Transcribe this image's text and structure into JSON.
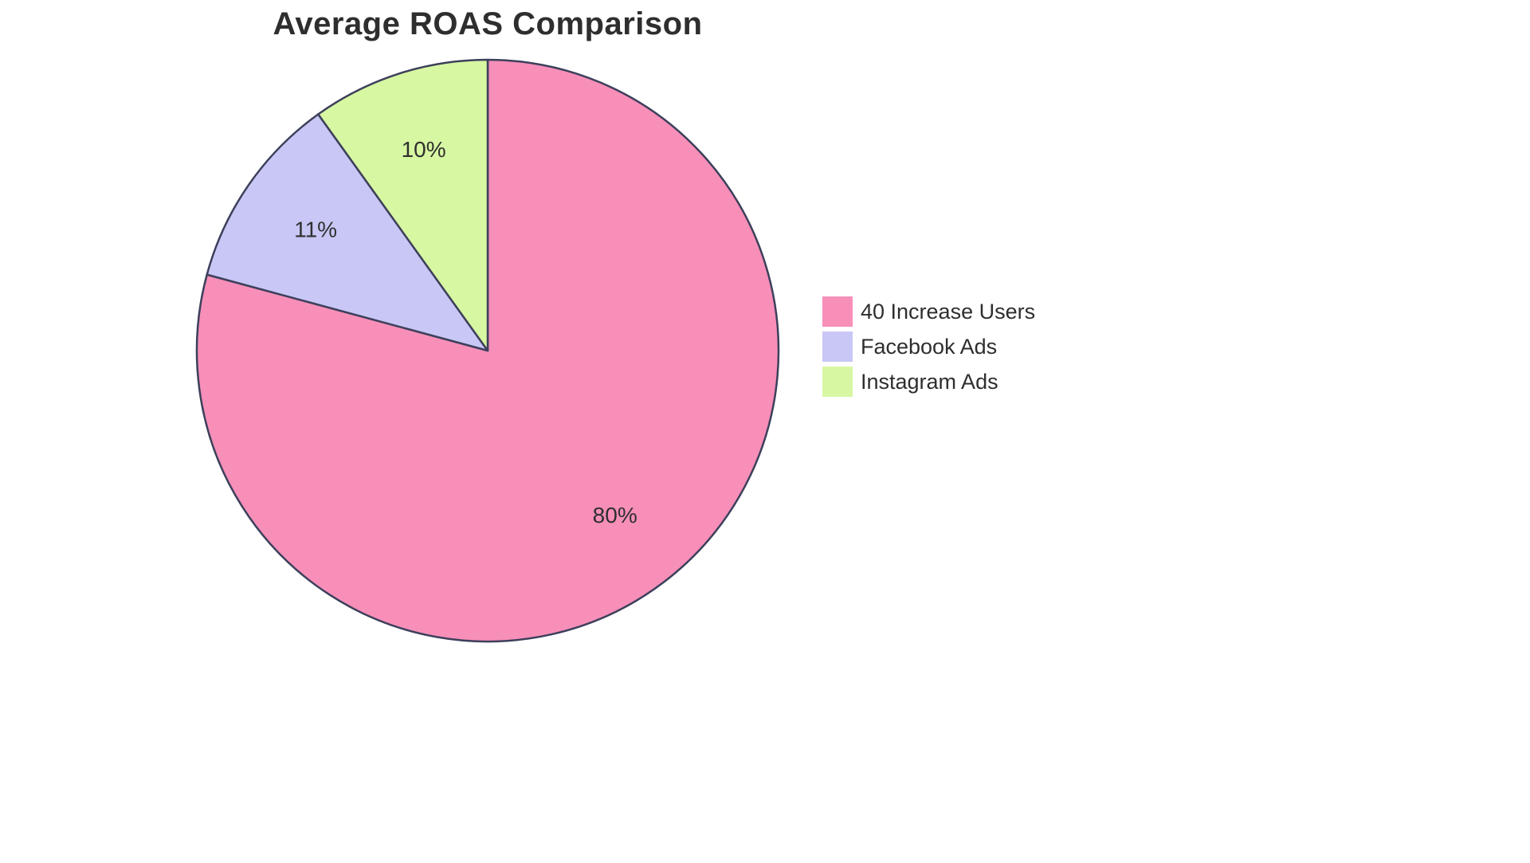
{
  "page": {
    "background": "#ffffff"
  },
  "chart_data": {
    "type": "pie",
    "title": "Average ROAS Comparison",
    "slices": [
      {
        "label": "40 Increase Users",
        "value": 80,
        "display": "80%",
        "color": "#F78FB9"
      },
      {
        "label": "Facebook Ads",
        "value": 11,
        "display": "11%",
        "color": "#C9C7F5"
      },
      {
        "label": "Instagram Ads",
        "value": 10,
        "display": "10%",
        "color": "#D7F7A2"
      }
    ],
    "start_angle_deg": -90,
    "direction": "clockwise",
    "stroke_color": "#3D405B",
    "label_color": "#2F2F2F",
    "legend_position": "right"
  }
}
